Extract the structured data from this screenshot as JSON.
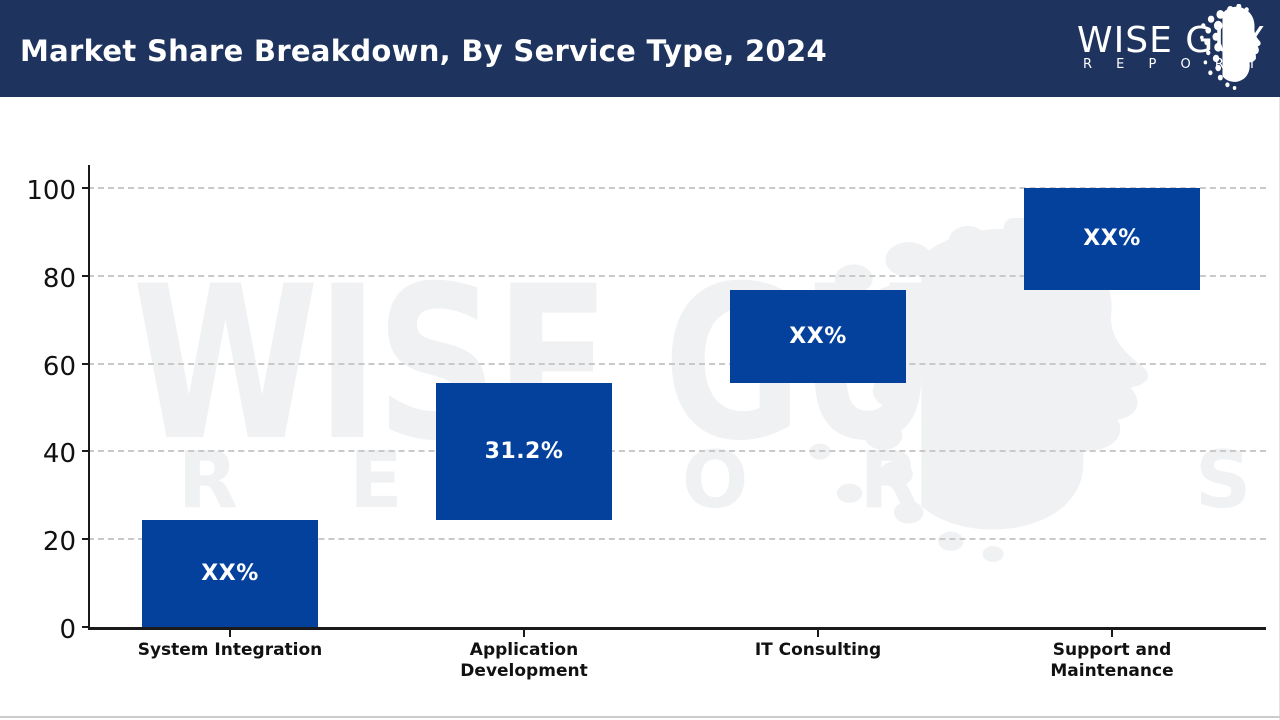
{
  "header": {
    "title": "Market Share Breakdown, By Service Type, 2024",
    "bg_color": "#1e345f",
    "logo": {
      "name": "Wise Guy Reports",
      "line1": "WISE GUY",
      "line2": "R E P O R T S"
    }
  },
  "watermark": {
    "line1": "WISE GUY",
    "line2": "R E P O R T S"
  },
  "chart_data": {
    "type": "bar",
    "subtype": "waterfall",
    "title": "Market Share Breakdown, By Service Type, 2024",
    "categories": [
      "System Integration",
      "Application Development",
      "IT Consulting",
      "Support and Maintenance"
    ],
    "category_label_lines": [
      [
        "System Integration"
      ],
      [
        "Application",
        "Development"
      ],
      [
        "IT Consulting"
      ],
      [
        "Support and",
        "Maintenance"
      ]
    ],
    "series": [
      {
        "name": "Market Share (%)",
        "segments": [
          {
            "category": "System Integration",
            "start": 0,
            "end": 24.3,
            "value": 24.3,
            "label": "XX%"
          },
          {
            "category": "Application Development",
            "start": 24.3,
            "end": 55.5,
            "value": 31.2,
            "label": "31.2%"
          },
          {
            "category": "IT Consulting",
            "start": 55.5,
            "end": 76.8,
            "value": 21.3,
            "label": "XX%"
          },
          {
            "category": "Support and Maintenance",
            "start": 76.8,
            "end": 100,
            "value": 23.2,
            "label": "XX%"
          }
        ]
      }
    ],
    "ylim": [
      0,
      105
    ],
    "yticks": [
      0,
      20,
      40,
      60,
      80,
      100
    ],
    "xlabel": "",
    "ylabel": "",
    "grid": "horizontal-dashed",
    "legend": "none",
    "bar_color": "#04419d",
    "bar_label_color": "#ffffff"
  }
}
